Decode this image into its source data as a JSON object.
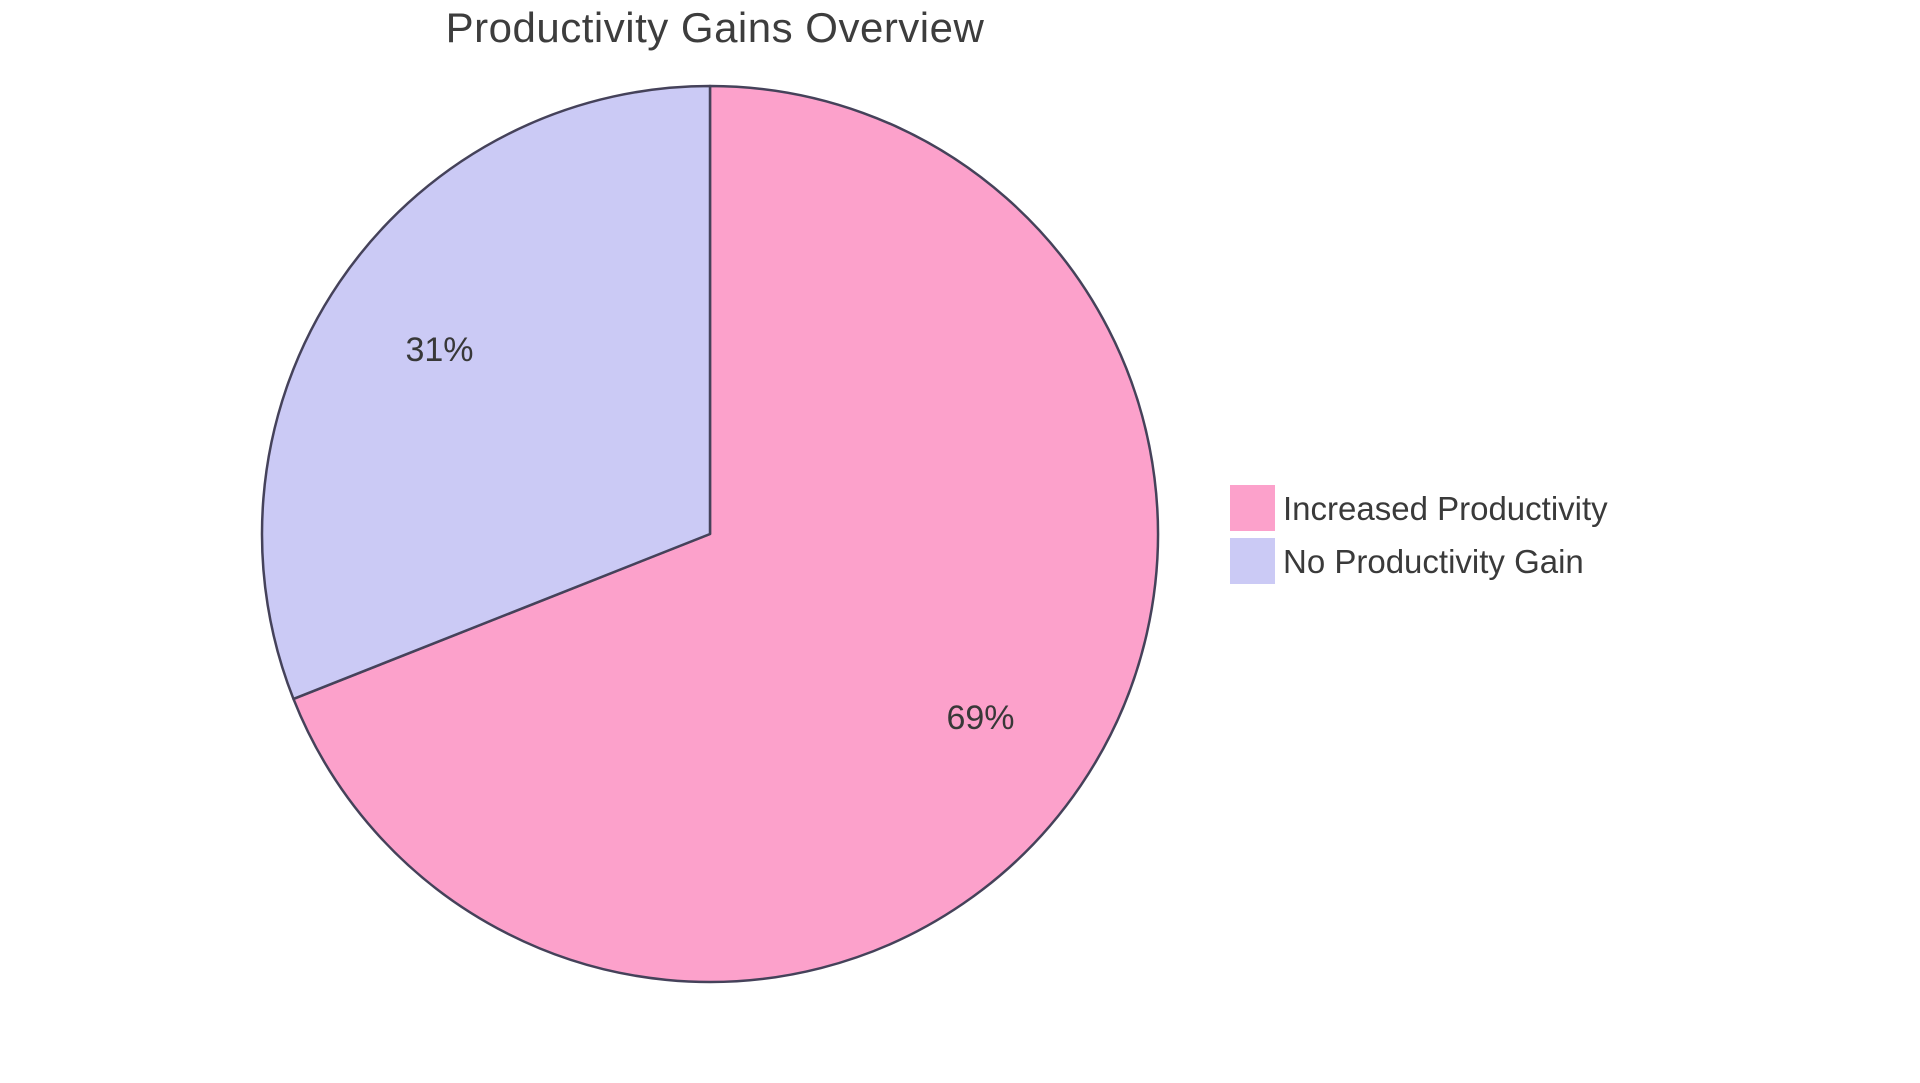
{
  "title": "Productivity Gains Overview",
  "chart_data": {
    "type": "pie",
    "title": "Productivity Gains Overview",
    "start_angle_deg": 0,
    "direction": "clockwise",
    "legend_position": "right",
    "slice_border_color": "#45425A",
    "label_color": "#383838",
    "slices": [
      {
        "label": "Increased Productivity",
        "value": 69,
        "display": "69%",
        "color": "#FCA1CB"
      },
      {
        "label": "No Productivity Gain",
        "value": 31,
        "display": "31%",
        "color": "#CBCAF5"
      }
    ]
  },
  "legend": {
    "items": [
      {
        "label": "Increased Productivity",
        "color": "#FCA1CB"
      },
      {
        "label": "No Productivity Gain",
        "color": "#CBCAF5"
      }
    ]
  }
}
